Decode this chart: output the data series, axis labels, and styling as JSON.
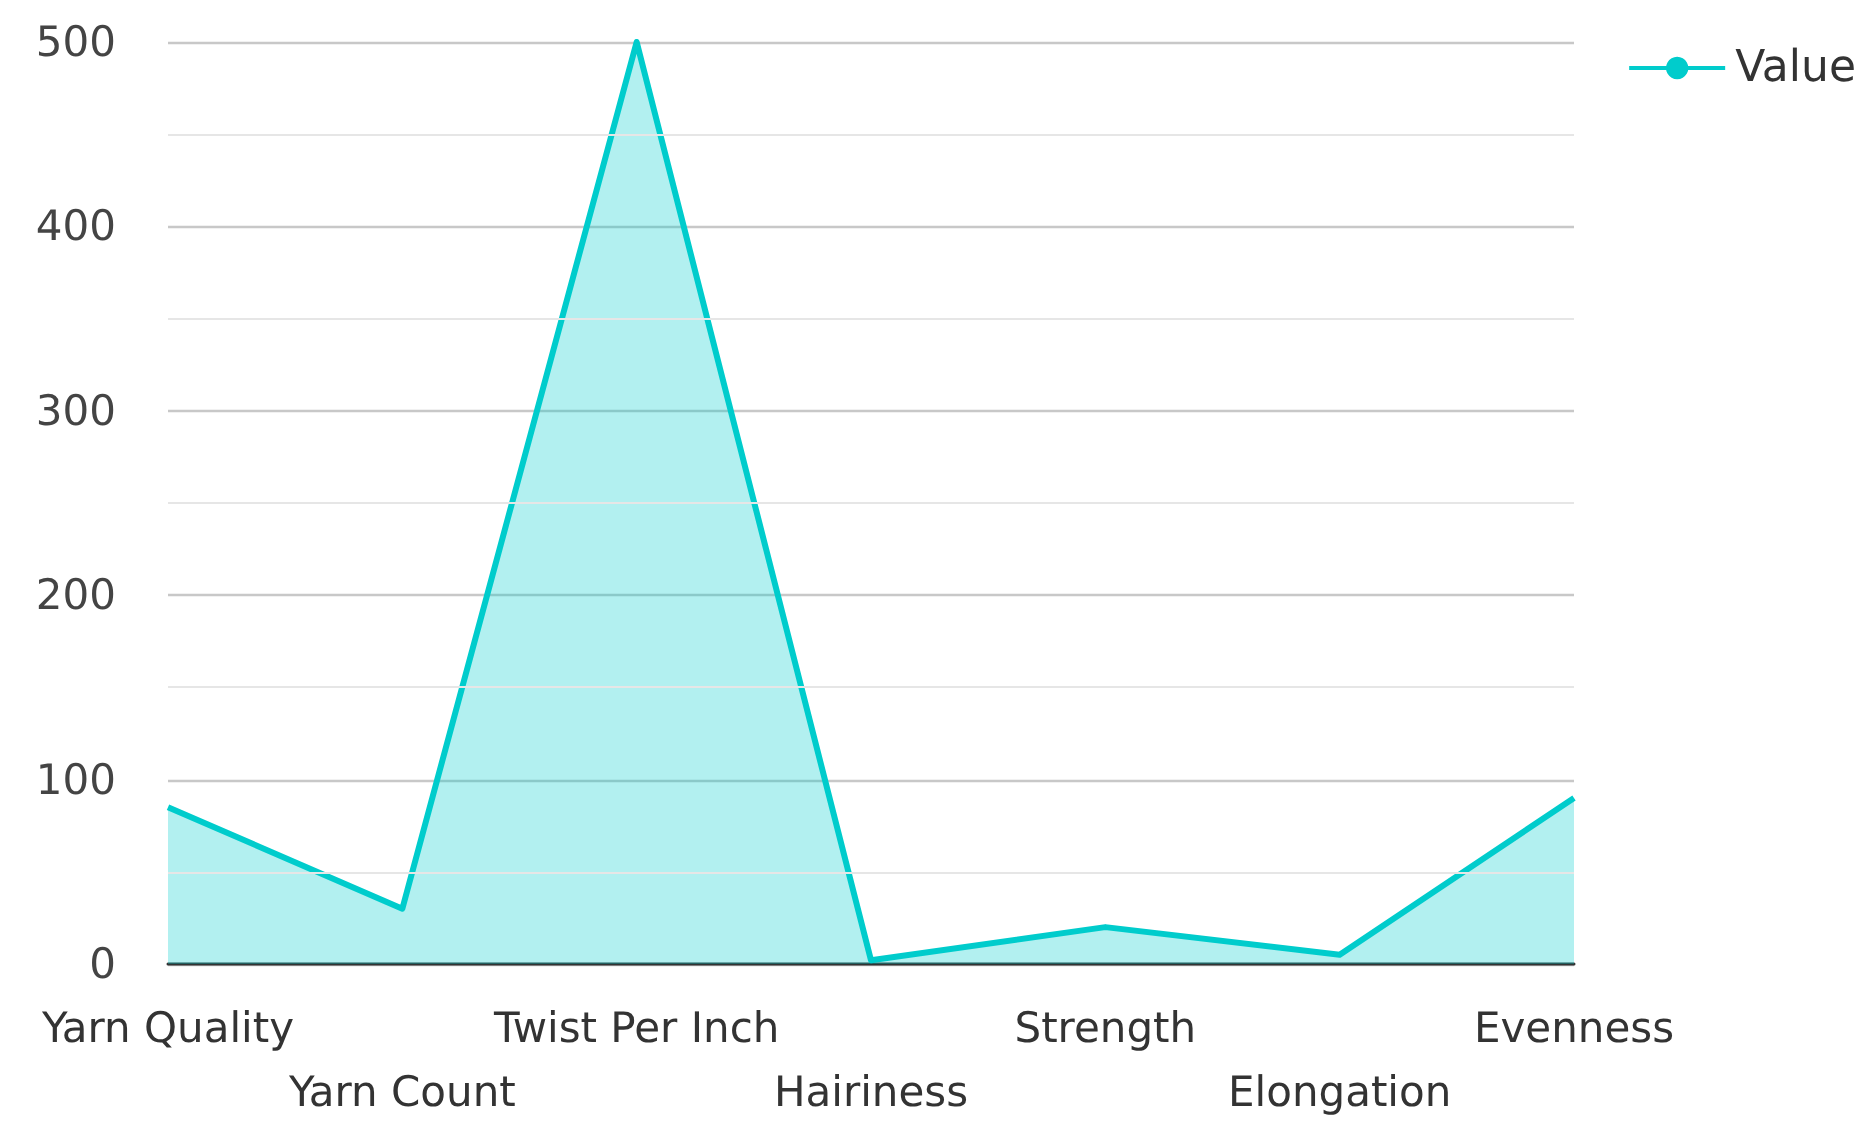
{
  "chart_data": {
    "type": "area",
    "categories": [
      "Yarn Quality",
      "Yarn Count",
      "Twist Per Inch",
      "Hairiness",
      "Strength",
      "Elongation",
      "Evenness"
    ],
    "series": [
      {
        "name": "Value",
        "color": "#00cccc",
        "values": [
          85,
          30,
          500,
          2,
          20,
          5,
          90
        ]
      }
    ],
    "ylim": [
      0,
      500
    ],
    "yticks": [
      0,
      {
        "value": 50,
        "label": null
      },
      100,
      {
        "value": 150,
        "label": null
      },
      200,
      {
        "value": 250,
        "label": null
      },
      300,
      {
        "value": 350,
        "label": null
      },
      400,
      {
        "value": 450,
        "label": null
      },
      500
    ],
    "grid": "y",
    "legend": "top right",
    "marker": "none",
    "line_style": "solid"
  }
}
